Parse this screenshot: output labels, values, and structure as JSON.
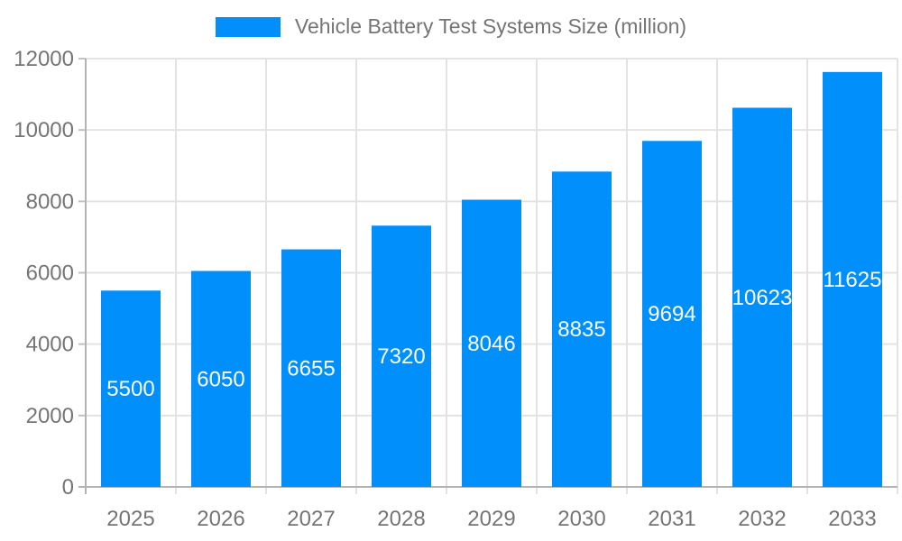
{
  "legend": {
    "label": "Vehicle Battery Test Systems Size (million)"
  },
  "chart_data": {
    "type": "bar",
    "title": "Vehicle Battery Test Systems Size (million)",
    "categories": [
      "2025",
      "2026",
      "2027",
      "2028",
      "2029",
      "2030",
      "2031",
      "2032",
      "2033"
    ],
    "series": [
      {
        "name": "Vehicle Battery Test Systems Size (million)",
        "values": [
          5500,
          6050,
          6655,
          7320,
          8046,
          8835,
          9694,
          10623,
          11625
        ]
      }
    ],
    "xlabel": "",
    "ylabel": "",
    "ylim": [
      0,
      12000
    ],
    "yticks": [
      0,
      2000,
      4000,
      6000,
      8000,
      10000,
      12000
    ],
    "grid": true,
    "legend_position": "top",
    "bar_labels_inside": true
  },
  "colors": {
    "bar": "#008ffb",
    "bar_label": "#ffffff",
    "axis_text": "#757575",
    "grid_line": "#e3e3e3",
    "axis_line": "#b3b3b3",
    "tick": "#c2c2c2",
    "background": "#ffffff"
  }
}
